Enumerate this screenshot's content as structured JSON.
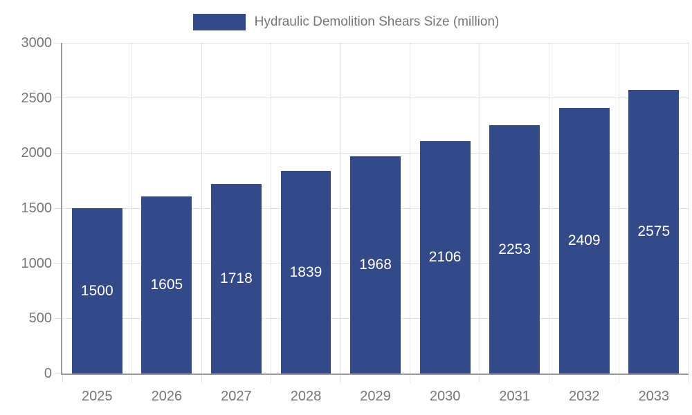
{
  "chart_data": {
    "type": "bar",
    "title": "Hydraulic Demolition Shears Size (million)",
    "categories": [
      "2025",
      "2026",
      "2027",
      "2028",
      "2029",
      "2030",
      "2031",
      "2032",
      "2033"
    ],
    "values": [
      1500,
      1605,
      1718,
      1839,
      1968,
      2106,
      2253,
      2409,
      2575
    ],
    "xlabel": "",
    "ylabel": "",
    "ylim": [
      0,
      3000
    ],
    "ytick_step": 500,
    "yticks": [
      0,
      500,
      1000,
      1500,
      2000,
      2500,
      3000
    ],
    "grid": "on",
    "legend_position": "top-center",
    "bar_value_labels": "inside-center"
  },
  "colors": {
    "bar": "#344a88",
    "bar_value_label": "#ffffff",
    "grid_line": "#e2e2e2",
    "axis_line": "#9b9b9f",
    "axis_tick_label": "#75757a",
    "legend_text": "#757575",
    "background": "#ffffff"
  }
}
